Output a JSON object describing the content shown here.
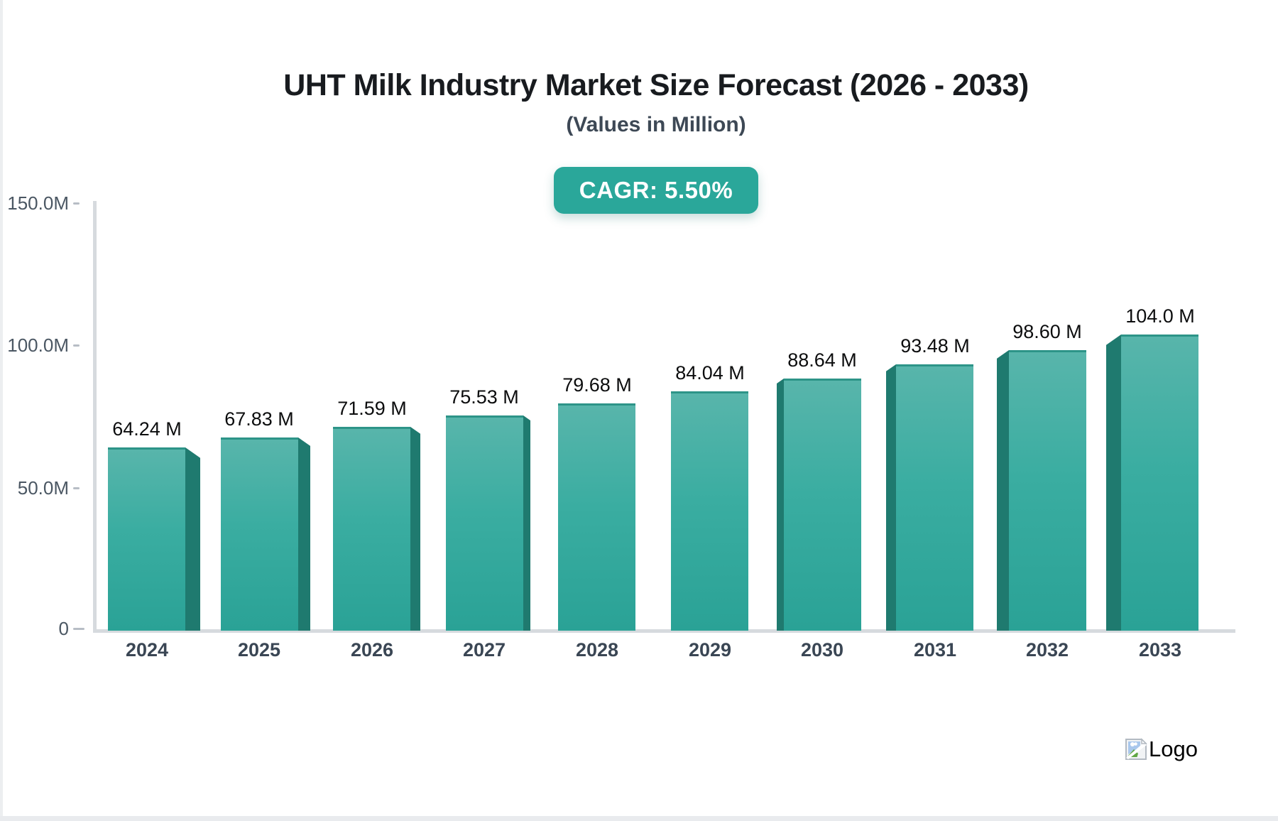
{
  "header": {
    "title": "UHT Milk Industry Market Size Forecast (2026 - 2033)",
    "subtitle": "(Values in Million)",
    "cagr_label": "CAGR: 5.50%"
  },
  "chart_data": {
    "type": "bar",
    "title": "UHT Milk Industry Market Size Forecast (2026 - 2033)",
    "subtitle": "(Values in Million)",
    "cagr": "5.50%",
    "categories": [
      "2024",
      "2025",
      "2026",
      "2027",
      "2028",
      "2029",
      "2030",
      "2031",
      "2032",
      "2033"
    ],
    "values": [
      64.24,
      67.83,
      71.59,
      75.53,
      79.68,
      84.04,
      88.64,
      93.48,
      98.6,
      104.0
    ],
    "value_labels": [
      "64.24 M",
      "67.83 M",
      "71.59 M",
      "75.53 M",
      "79.68 M",
      "84.04 M",
      "88.64 M",
      "93.48 M",
      "98.60 M",
      "104.0 M"
    ],
    "xlabel": "",
    "ylabel": "",
    "ylim": [
      0,
      150
    ],
    "grid": false,
    "legend": false,
    "y_axis": {
      "tick_labels": [
        "150.0M",
        "100.0M",
        "50.0M",
        "0"
      ],
      "tick_values": [
        150,
        100,
        50,
        0
      ]
    },
    "colors": {
      "bar_top": "#58b5ab",
      "bar_bottom": "#2aa296",
      "bar_side": "#1f7a6f",
      "bar_top_edge": "#2d9488",
      "badge_background": "#2aa79a",
      "axis_line": "#d6dade",
      "axis_text": "#4b5763",
      "category_text": "#3a4654"
    }
  },
  "footer": {
    "logo_text": "Logo"
  }
}
